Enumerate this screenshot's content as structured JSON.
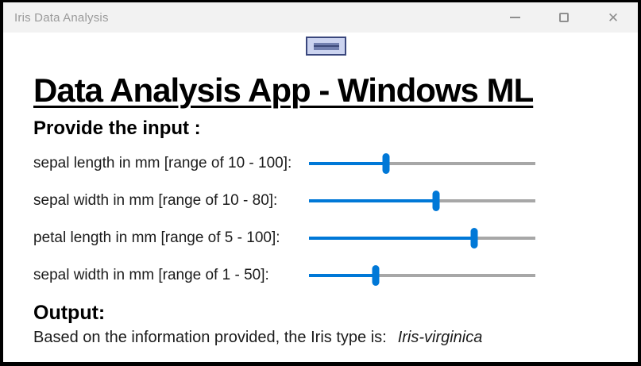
{
  "window": {
    "title": "Iris Data Analysis",
    "controls": {
      "close_glyph": "✕"
    }
  },
  "header": {
    "title": "Data Analysis App - Windows ML"
  },
  "input": {
    "heading": "Provide the input :",
    "sliders": [
      {
        "label": "sepal length in mm [range of 10 - 100]:",
        "min": 10,
        "max": 100,
        "percent": 34
      },
      {
        "label": "sepal width in mm [range of 10 - 80]:",
        "min": 10,
        "max": 80,
        "percent": 56
      },
      {
        "label": "petal length in mm [range of 5 - 100]:",
        "min": 5,
        "max": 100,
        "percent": 73
      },
      {
        "label": "sepal width in mm [range of 1 - 50]:",
        "min": 1,
        "max": 50,
        "percent": 29.5
      }
    ]
  },
  "output": {
    "heading": "Output:",
    "prefix": "Based on the information provided, the Iris type is:",
    "value": "Iris-virginica"
  },
  "colors": {
    "accent_blue": "#0078d7",
    "track_gray": "#a7a7a7",
    "titlebar_bg": "#f2f2f2",
    "title_text": "#9a9a9a"
  }
}
